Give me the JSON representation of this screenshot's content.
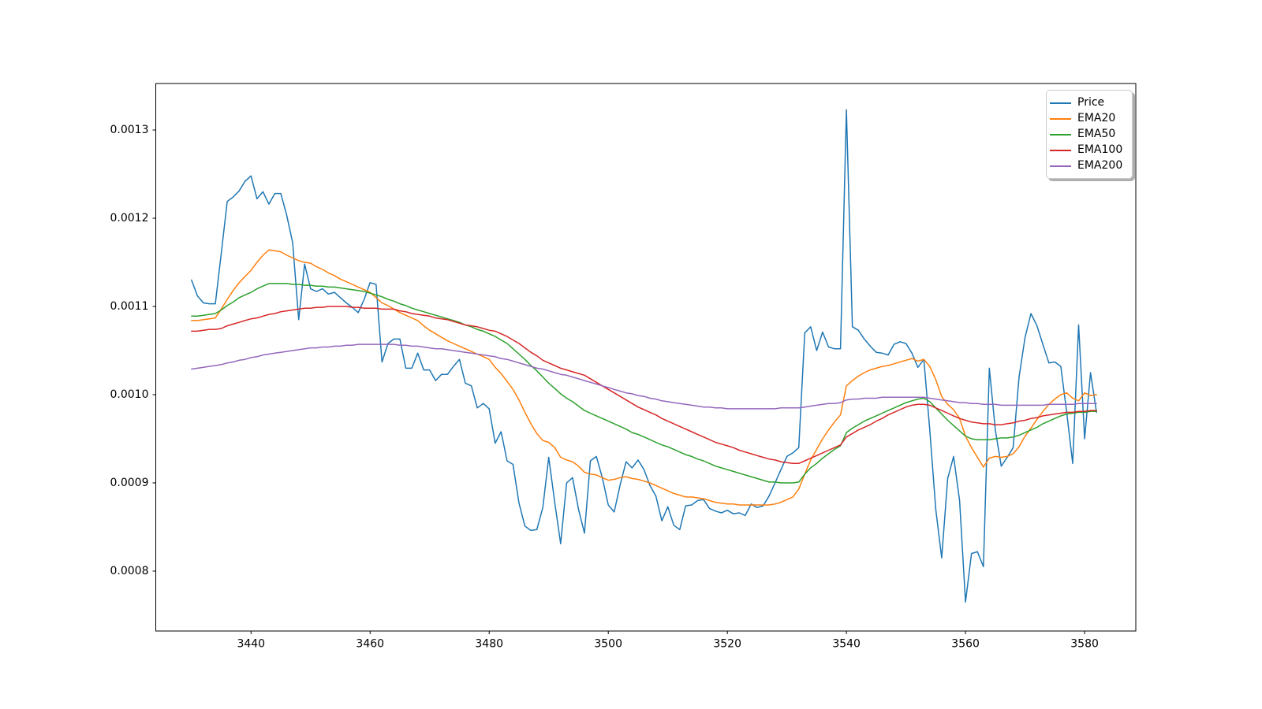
{
  "figure": {
    "background": "#ffffff"
  },
  "chart_data": {
    "type": "line",
    "title": "",
    "xlabel": "",
    "ylabel": "",
    "grid": false,
    "legend_position": "upper right",
    "xlim": [
      3424.0,
      3588.6
    ],
    "ylim": [
      0.0007321,
      0.0013527
    ],
    "x_ticks": [
      3440,
      3460,
      3480,
      3500,
      3520,
      3540,
      3560,
      3580
    ],
    "x_tick_labels": [
      "3440",
      "3460",
      "3480",
      "3500",
      "3520",
      "3540",
      "3560",
      "3580"
    ],
    "y_ticks": [
      0.0008,
      0.0009,
      0.001,
      0.0011,
      0.0012,
      0.0013
    ],
    "y_tick_labels": [
      "0.0008",
      "0.0009",
      "0.0010",
      "0.0011",
      "0.0012",
      "0.0013"
    ],
    "x_start": 3430,
    "x_step": 1,
    "value_scale": 0.0001,
    "series": [
      {
        "name": "Price",
        "color": "#1f77b4",
        "values": [
          11.3,
          11.12,
          11.04,
          11.03,
          11.03,
          11.6,
          12.19,
          12.24,
          12.31,
          12.42,
          12.48,
          12.22,
          12.3,
          12.16,
          12.28,
          12.28,
          12.03,
          11.72,
          10.85,
          11.48,
          11.2,
          11.17,
          11.2,
          11.14,
          11.16,
          11.1,
          11.04,
          10.99,
          10.93,
          11.08,
          11.27,
          11.25,
          10.37,
          10.58,
          10.63,
          10.63,
          10.3,
          10.3,
          10.47,
          10.28,
          10.28,
          10.16,
          10.23,
          10.23,
          10.32,
          10.4,
          10.13,
          10.1,
          9.85,
          9.9,
          9.84,
          9.45,
          9.58,
          9.25,
          9.21,
          8.77,
          8.51,
          8.46,
          8.47,
          8.72,
          9.29,
          8.78,
          8.31,
          9.0,
          9.06,
          8.7,
          8.43,
          9.25,
          9.3,
          9.06,
          8.75,
          8.67,
          8.98,
          9.24,
          9.17,
          9.26,
          9.15,
          8.97,
          8.85,
          8.57,
          8.73,
          8.52,
          8.47,
          8.74,
          8.75,
          8.8,
          8.81,
          8.71,
          8.68,
          8.66,
          8.69,
          8.65,
          8.66,
          8.63,
          8.76,
          8.72,
          8.74,
          8.85,
          9.0,
          9.15,
          9.3,
          9.34,
          9.4,
          10.7,
          10.77,
          10.5,
          10.71,
          10.54,
          10.52,
          10.52,
          13.23,
          10.77,
          10.73,
          10.63,
          10.55,
          10.48,
          10.47,
          10.45,
          10.57,
          10.6,
          10.58,
          10.47,
          10.31,
          10.4,
          9.6,
          8.7,
          8.15,
          9.05,
          9.3,
          8.8,
          7.65,
          8.2,
          8.22,
          8.05,
          10.3,
          9.6,
          9.19,
          9.29,
          9.4,
          10.2,
          10.65,
          10.92,
          10.78,
          10.57,
          10.36,
          10.37,
          10.32,
          9.8,
          9.22,
          10.79,
          9.5,
          10.25,
          9.8
        ]
      },
      {
        "name": "EMA20",
        "color": "#ff7f0e",
        "values": [
          10.84,
          10.84,
          10.85,
          10.86,
          10.87,
          10.97,
          11.08,
          11.18,
          11.27,
          11.34,
          11.41,
          11.5,
          11.58,
          11.64,
          11.63,
          11.62,
          11.58,
          11.55,
          11.52,
          11.5,
          11.49,
          11.45,
          11.42,
          11.38,
          11.35,
          11.31,
          11.28,
          11.25,
          11.22,
          11.19,
          11.16,
          11.1,
          11.04,
          11.01,
          10.97,
          10.93,
          10.9,
          10.87,
          10.84,
          10.78,
          10.73,
          10.69,
          10.65,
          10.61,
          10.58,
          10.55,
          10.52,
          10.49,
          10.46,
          10.43,
          10.4,
          10.31,
          10.24,
          10.15,
          10.06,
          9.94,
          9.8,
          9.67,
          9.56,
          9.48,
          9.46,
          9.4,
          9.29,
          9.26,
          9.24,
          9.19,
          9.12,
          9.1,
          9.09,
          9.06,
          9.03,
          9.04,
          9.06,
          9.07,
          9.05,
          9.04,
          9.02,
          9.0,
          8.97,
          8.94,
          8.91,
          8.88,
          8.86,
          8.84,
          8.84,
          8.83,
          8.82,
          8.8,
          8.78,
          8.77,
          8.76,
          8.76,
          8.75,
          8.75,
          8.75,
          8.75,
          8.75,
          8.75,
          8.76,
          8.78,
          8.81,
          8.84,
          8.93,
          9.1,
          9.26,
          9.38,
          9.5,
          9.6,
          9.69,
          9.77,
          10.1,
          10.16,
          10.21,
          10.25,
          10.28,
          10.3,
          10.32,
          10.33,
          10.35,
          10.37,
          10.39,
          10.41,
          10.38,
          10.4,
          10.32,
          10.17,
          9.98,
          9.89,
          9.83,
          9.73,
          9.53,
          9.4,
          9.29,
          9.18,
          9.28,
          9.3,
          9.29,
          9.3,
          9.33,
          9.41,
          9.53,
          9.62,
          9.72,
          9.81,
          9.89,
          9.95,
          10.0,
          10.02,
          9.96,
          9.93,
          10.02,
          9.99,
          10.0
        ]
      },
      {
        "name": "EMA50",
        "color": "#2ca02c",
        "values": [
          10.89,
          10.89,
          10.9,
          10.91,
          10.92,
          10.96,
          11.01,
          11.05,
          11.1,
          11.13,
          11.16,
          11.2,
          11.23,
          11.26,
          11.26,
          11.26,
          11.26,
          11.25,
          11.25,
          11.24,
          11.24,
          11.23,
          11.23,
          11.22,
          11.22,
          11.21,
          11.2,
          11.19,
          11.18,
          11.17,
          11.15,
          11.13,
          11.11,
          11.08,
          11.06,
          11.03,
          11.01,
          10.98,
          10.96,
          10.94,
          10.92,
          10.9,
          10.88,
          10.86,
          10.84,
          10.82,
          10.79,
          10.77,
          10.74,
          10.72,
          10.69,
          10.66,
          10.62,
          10.58,
          10.52,
          10.46,
          10.4,
          10.33,
          10.27,
          10.2,
          10.13,
          10.07,
          10.01,
          9.96,
          9.92,
          9.87,
          9.82,
          9.79,
          9.76,
          9.73,
          9.7,
          9.67,
          9.64,
          9.61,
          9.57,
          9.55,
          9.52,
          9.49,
          9.46,
          9.43,
          9.41,
          9.38,
          9.35,
          9.32,
          9.3,
          9.27,
          9.25,
          9.22,
          9.19,
          9.17,
          9.15,
          9.13,
          9.11,
          9.09,
          9.07,
          9.05,
          9.03,
          9.01,
          9.01,
          9.0,
          9.0,
          9.0,
          9.01,
          9.1,
          9.17,
          9.22,
          9.28,
          9.33,
          9.38,
          9.42,
          9.57,
          9.62,
          9.66,
          9.7,
          9.73,
          9.76,
          9.79,
          9.82,
          9.85,
          9.88,
          9.91,
          9.93,
          9.95,
          9.96,
          9.92,
          9.85,
          9.78,
          9.71,
          9.65,
          9.59,
          9.53,
          9.5,
          9.49,
          9.49,
          9.49,
          9.5,
          9.51,
          9.51,
          9.52,
          9.54,
          9.57,
          9.6,
          9.63,
          9.67,
          9.7,
          9.73,
          9.76,
          9.78,
          9.79,
          9.8,
          9.8,
          9.81,
          9.81
        ]
      },
      {
        "name": "EMA100",
        "color": "#d62728",
        "values": [
          10.72,
          10.72,
          10.73,
          10.74,
          10.74,
          10.75,
          10.78,
          10.8,
          10.82,
          10.84,
          10.86,
          10.87,
          10.89,
          10.91,
          10.92,
          10.94,
          10.95,
          10.96,
          10.97,
          10.98,
          10.98,
          10.99,
          10.99,
          11.0,
          11.0,
          11.0,
          11.0,
          10.99,
          10.99,
          10.98,
          10.98,
          10.98,
          10.97,
          10.97,
          10.97,
          10.95,
          10.94,
          10.92,
          10.91,
          10.9,
          10.89,
          10.87,
          10.86,
          10.85,
          10.83,
          10.81,
          10.79,
          10.78,
          10.77,
          10.75,
          10.73,
          10.72,
          10.69,
          10.66,
          10.62,
          10.58,
          10.53,
          10.48,
          10.44,
          10.39,
          10.36,
          10.33,
          10.3,
          10.28,
          10.26,
          10.24,
          10.22,
          10.18,
          10.14,
          10.1,
          10.06,
          10.02,
          9.98,
          9.94,
          9.9,
          9.86,
          9.83,
          9.8,
          9.77,
          9.73,
          9.7,
          9.67,
          9.64,
          9.61,
          9.58,
          9.55,
          9.52,
          9.49,
          9.46,
          9.44,
          9.42,
          9.4,
          9.37,
          9.35,
          9.33,
          9.31,
          9.29,
          9.27,
          9.26,
          9.24,
          9.23,
          9.22,
          9.22,
          9.25,
          9.28,
          9.31,
          9.34,
          9.37,
          9.4,
          9.43,
          9.52,
          9.56,
          9.6,
          9.63,
          9.66,
          9.7,
          9.73,
          9.77,
          9.8,
          9.83,
          9.86,
          9.88,
          9.89,
          9.89,
          9.88,
          9.85,
          9.82,
          9.79,
          9.76,
          9.73,
          9.71,
          9.69,
          9.68,
          9.67,
          9.67,
          9.66,
          9.66,
          9.67,
          9.68,
          9.7,
          9.71,
          9.73,
          9.74,
          9.76,
          9.77,
          9.78,
          9.79,
          9.8,
          9.8,
          9.81,
          9.81,
          9.82,
          9.82
        ]
      },
      {
        "name": "EMA200",
        "color": "#9467bd",
        "values": [
          10.29,
          10.3,
          10.31,
          10.32,
          10.33,
          10.34,
          10.36,
          10.37,
          10.39,
          10.4,
          10.42,
          10.43,
          10.45,
          10.46,
          10.47,
          10.48,
          10.49,
          10.5,
          10.51,
          10.52,
          10.53,
          10.53,
          10.54,
          10.54,
          10.55,
          10.55,
          10.56,
          10.56,
          10.57,
          10.57,
          10.57,
          10.57,
          10.57,
          10.57,
          10.57,
          10.56,
          10.56,
          10.55,
          10.55,
          10.54,
          10.53,
          10.52,
          10.52,
          10.51,
          10.5,
          10.49,
          10.48,
          10.47,
          10.46,
          10.45,
          10.44,
          10.43,
          10.41,
          10.4,
          10.38,
          10.36,
          10.34,
          10.32,
          10.3,
          10.29,
          10.27,
          10.25,
          10.23,
          10.22,
          10.2,
          10.18,
          10.16,
          10.14,
          10.12,
          10.1,
          10.08,
          10.06,
          10.04,
          10.02,
          10.01,
          9.99,
          9.98,
          9.96,
          9.95,
          9.93,
          9.92,
          9.91,
          9.9,
          9.89,
          9.88,
          9.87,
          9.86,
          9.86,
          9.85,
          9.85,
          9.84,
          9.84,
          9.84,
          9.84,
          9.84,
          9.84,
          9.84,
          9.84,
          9.84,
          9.85,
          9.85,
          9.85,
          9.85,
          9.86,
          9.87,
          9.88,
          9.89,
          9.9,
          9.9,
          9.91,
          9.94,
          9.95,
          9.95,
          9.96,
          9.96,
          9.96,
          9.97,
          9.97,
          9.97,
          9.97,
          9.97,
          9.97,
          9.97,
          9.97,
          9.96,
          9.95,
          9.94,
          9.93,
          9.92,
          9.91,
          9.91,
          9.9,
          9.9,
          9.89,
          9.89,
          9.89,
          9.88,
          9.88,
          9.88,
          9.88,
          9.88,
          9.88,
          9.88,
          9.88,
          9.89,
          9.89,
          9.89,
          9.89,
          9.89,
          9.9,
          9.9,
          9.9,
          9.9
        ]
      }
    ]
  },
  "legend": {
    "entries": [
      {
        "label": "Price",
        "color": "#1f77b4"
      },
      {
        "label": "EMA20",
        "color": "#ff7f0e"
      },
      {
        "label": "EMA50",
        "color": "#2ca02c"
      },
      {
        "label": "EMA100",
        "color": "#d62728"
      },
      {
        "label": "EMA200",
        "color": "#9467bd"
      }
    ]
  }
}
